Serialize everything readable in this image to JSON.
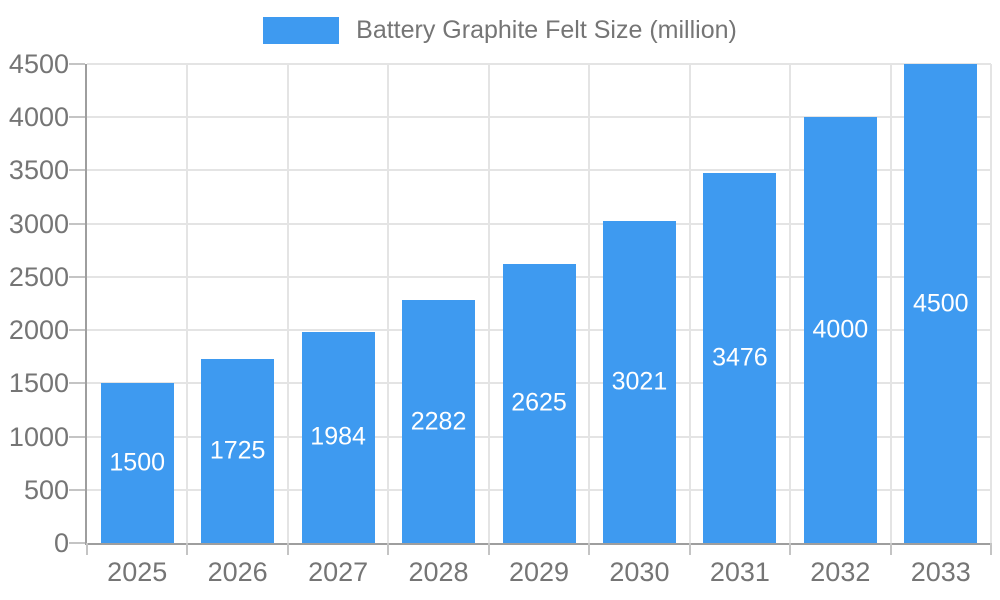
{
  "legend": {
    "label": "Battery Graphite Felt Size (million)"
  },
  "colors": {
    "background": "#FFFFFF",
    "bar": "#3E9AF0",
    "grid_line": "#E4E4E4",
    "axis_line": "#9E9E9E",
    "tick": "#C4C4C4",
    "axis_text": "#757575",
    "legend_text": "#757575",
    "bar_label_text": "#FFFFFF"
  },
  "chart_data": {
    "type": "bar",
    "title": "Battery Graphite Felt Size (million)",
    "categories": [
      "2025",
      "2026",
      "2027",
      "2028",
      "2029",
      "2030",
      "2031",
      "2032",
      "2033"
    ],
    "values": [
      1500,
      1725,
      1984,
      2282,
      2625,
      3021,
      3476,
      4000,
      4500
    ],
    "series_name": "Battery Graphite Felt Size (million)",
    "xlabel": "",
    "ylabel": "",
    "ylim": [
      0,
      4500
    ],
    "y_ticks": [
      0,
      500,
      1000,
      1500,
      2000,
      2500,
      3000,
      3500,
      4000,
      4500
    ],
    "grid": true,
    "legend_position": "top-center",
    "data_labels_position": "inside-center"
  }
}
